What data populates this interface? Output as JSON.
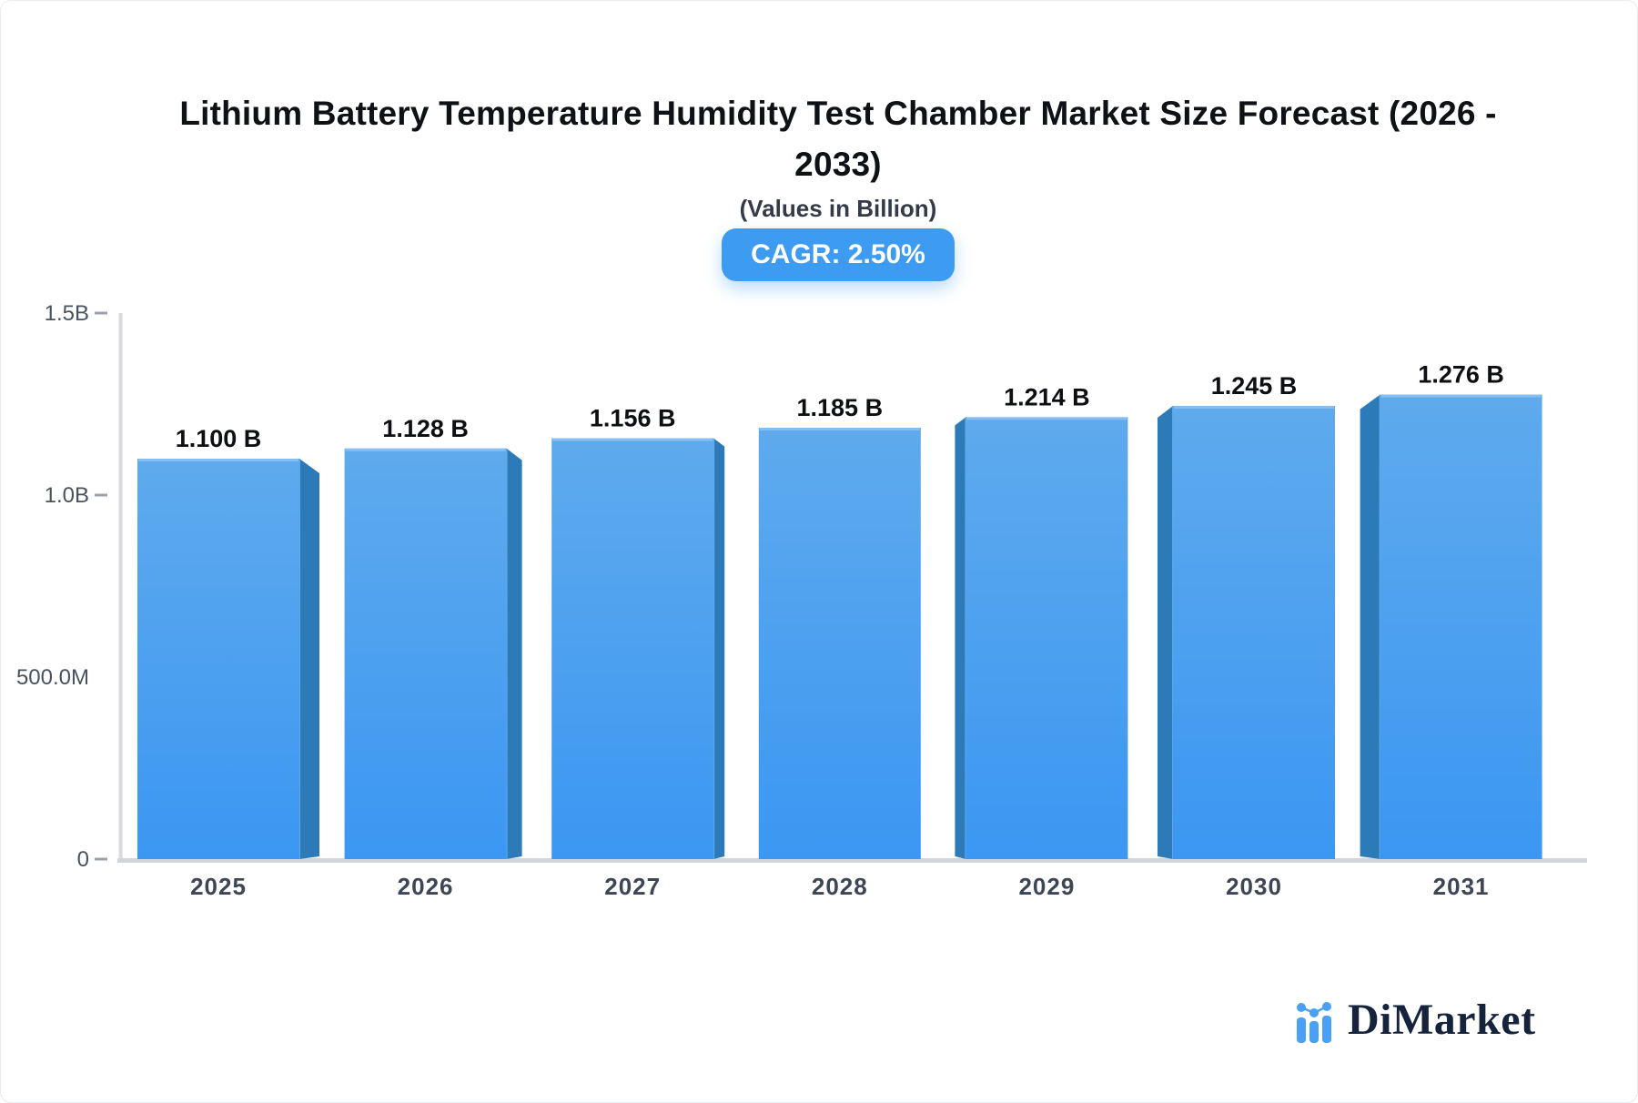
{
  "header": {
    "title": "Lithium Battery Temperature Humidity Test Chamber Market Size Forecast (2026 - 2033)",
    "subtitle": "(Values in Billion)",
    "cagr_label": "CAGR: 2.50%"
  },
  "chart_data": {
    "type": "bar",
    "title": "Lithium Battery Temperature Humidity Test Chamber Market Size Forecast (2026 - 2033)",
    "subtitle": "(Values in Billion)",
    "cagr_percent": 2.5,
    "categories": [
      "2025",
      "2026",
      "2027",
      "2028",
      "2029",
      "2030",
      "2031"
    ],
    "values": [
      1.1,
      1.128,
      1.156,
      1.185,
      1.214,
      1.245,
      1.276
    ],
    "value_labels": [
      "1.100 B",
      "1.128 B",
      "1.156 B",
      "1.185 B",
      "1.214 B",
      "1.245 B",
      "1.276 B"
    ],
    "ylim": [
      0,
      1.5
    ],
    "yticks": [
      {
        "label": "1.5B",
        "value": 1.5,
        "dash": true
      },
      {
        "label": "1.0B",
        "value": 1.0,
        "dash": true
      },
      {
        "label": "500.0M",
        "value": 0.5,
        "dash": false
      },
      {
        "label": "0",
        "value": 0.0,
        "dash": true
      }
    ],
    "grid": false,
    "legend": false,
    "style": "3d-column"
  },
  "colors": {
    "bar_top": "#5FAAED",
    "bar_bottom": "#3B97F2",
    "bar_side": "#2D7AB9",
    "bar_edge_light": "#8AC1F4",
    "bar_edge_inner": "#63ACEC",
    "accent": "#3D9BF2",
    "axis_v": "#D9DADD",
    "axis_h": "#D2D5DA",
    "tick_dash": "#9BA2AC",
    "tick_text": "#49525F",
    "category_text": "#3D4654",
    "value_text": "#0D0F12",
    "title_text": "#0E1116",
    "subtitle_text": "#333B49",
    "logo_text": "#16233C",
    "logo_icon": "#4AA0F4"
  },
  "footer": {
    "brand": "DiMarket"
  }
}
